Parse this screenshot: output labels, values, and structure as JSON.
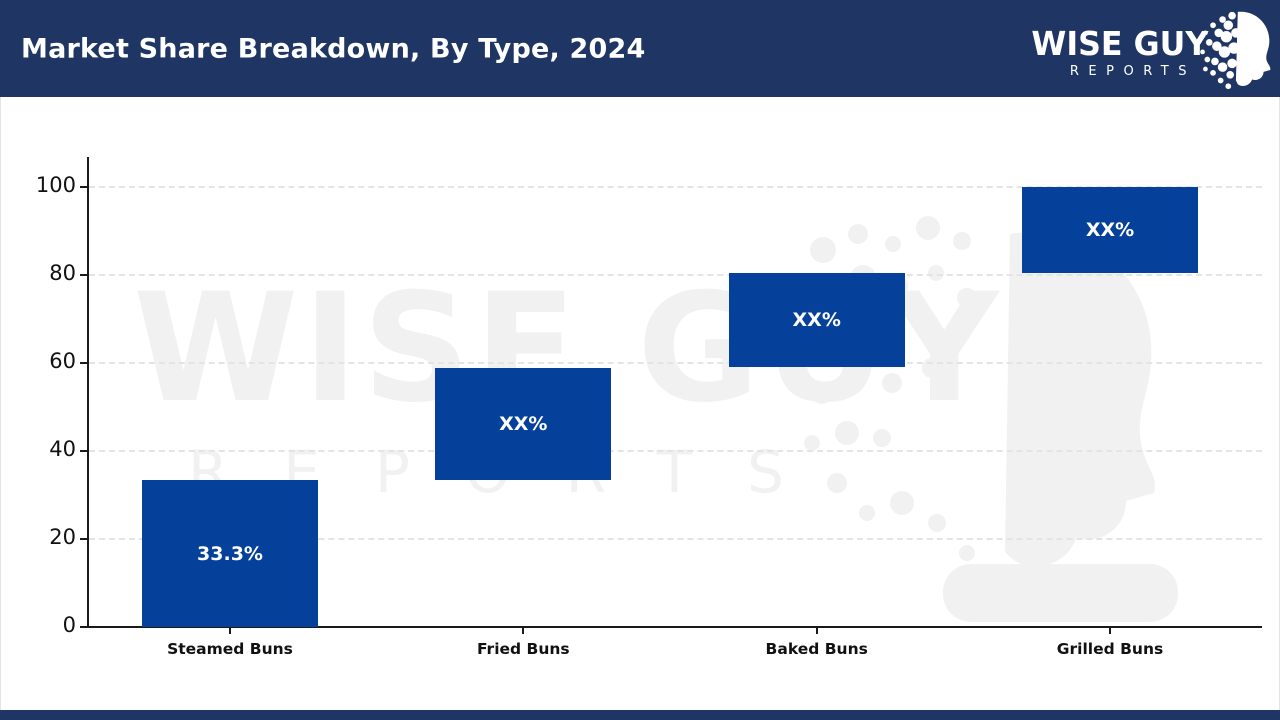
{
  "header": {
    "title": "Market Share Breakdown, By Type, 2024",
    "bg_color": "#1f3564",
    "title_color": "#ffffff"
  },
  "logo": {
    "line1": "WISE GUY",
    "line2": "REPORTS"
  },
  "watermark": {
    "line1": "WISE GUY",
    "line2": "REPORTS",
    "color": "#f1f1f1"
  },
  "footer": {
    "bg_color": "#1f3564"
  },
  "chart_data": {
    "type": "bar",
    "subtype": "waterfall",
    "title": "Market Share Breakdown, By Type, 2024",
    "xlabel": "",
    "ylabel": "",
    "categories": [
      "Steamed Buns",
      "Fried Buns",
      "Baked Buns",
      "Grilled Buns"
    ],
    "segments": [
      {
        "category": "Steamed Buns",
        "start": 0,
        "end": 33.3,
        "label": "33.3%"
      },
      {
        "category": "Fried Buns",
        "start": 33.3,
        "end": 58.9,
        "label": "XX%"
      },
      {
        "category": "Baked Buns",
        "start": 59.2,
        "end": 80.4,
        "label": "XX%"
      },
      {
        "category": "Grilled Buns",
        "start": 80.5,
        "end": 100,
        "label": "XX%"
      }
    ],
    "ylim": [
      0,
      100
    ],
    "yticks": [
      0,
      20,
      40,
      60,
      80,
      100
    ],
    "grid": "horizontal dashed",
    "gridline_color": "#e4e4e4",
    "bar_color": "#05419b",
    "bar_label_color": "#ffffff",
    "axis_color": "#1a1a1a",
    "legend": "none"
  }
}
